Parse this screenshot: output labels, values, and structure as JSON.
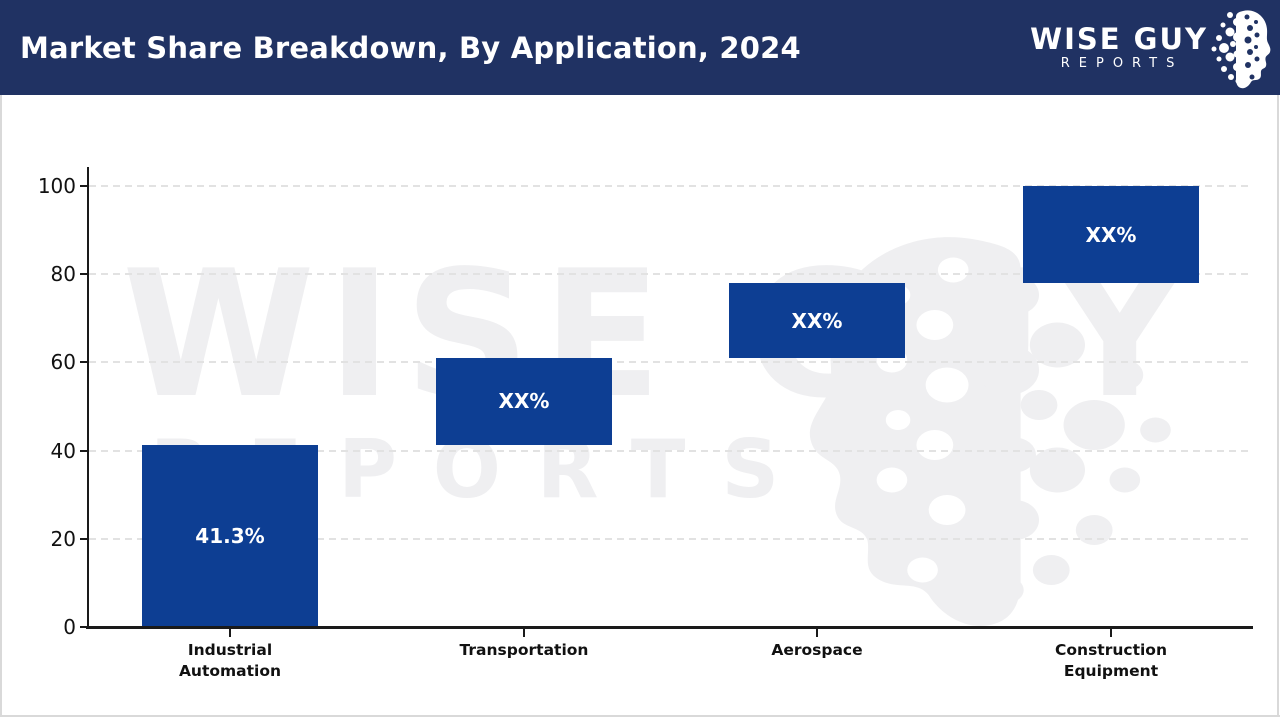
{
  "header": {
    "title": "Market Share Breakdown, By Application, 2024",
    "logo": {
      "line1": "WISE GUY",
      "line2": "REPORTS"
    }
  },
  "watermark": {
    "line1": "WISE GUY",
    "line2": "REPORTS"
  },
  "chart_data": {
    "type": "bar",
    "variant": "waterfall",
    "title": "Market Share Breakdown, By Application, 2024",
    "categories": [
      "Industrial Automation",
      "Transportation",
      "Aerospace",
      "Construction Equipment"
    ],
    "segments": [
      {
        "category": "Industrial Automation",
        "label_lines": [
          "Industrial",
          "Automation"
        ],
        "start": 0,
        "end": 41.3,
        "value_label": "41.3%"
      },
      {
        "category": "Transportation",
        "label_lines": [
          "Transportation"
        ],
        "start": 41.3,
        "end": 61,
        "value_label": "XX%"
      },
      {
        "category": "Aerospace",
        "label_lines": [
          "Aerospace"
        ],
        "start": 61,
        "end": 78,
        "value_label": "XX%"
      },
      {
        "category": "Construction Equipment",
        "label_lines": [
          "Construction",
          "Equipment"
        ],
        "start": 78,
        "end": 100,
        "value_label": "XX%"
      }
    ],
    "ylim": [
      0,
      100
    ],
    "yticks": [
      0,
      20,
      40,
      60,
      80,
      100
    ],
    "grid": {
      "horizontal": true,
      "style": "dashed"
    },
    "legend": "none"
  },
  "colors": {
    "header_bg": "#203263",
    "bar": "#0d3e93",
    "bar_label": "#ffffff",
    "grid": "#e2e2e2",
    "axis": "#1a1a1a",
    "watermark": "#efeff1",
    "border": "#d9d9d9"
  }
}
